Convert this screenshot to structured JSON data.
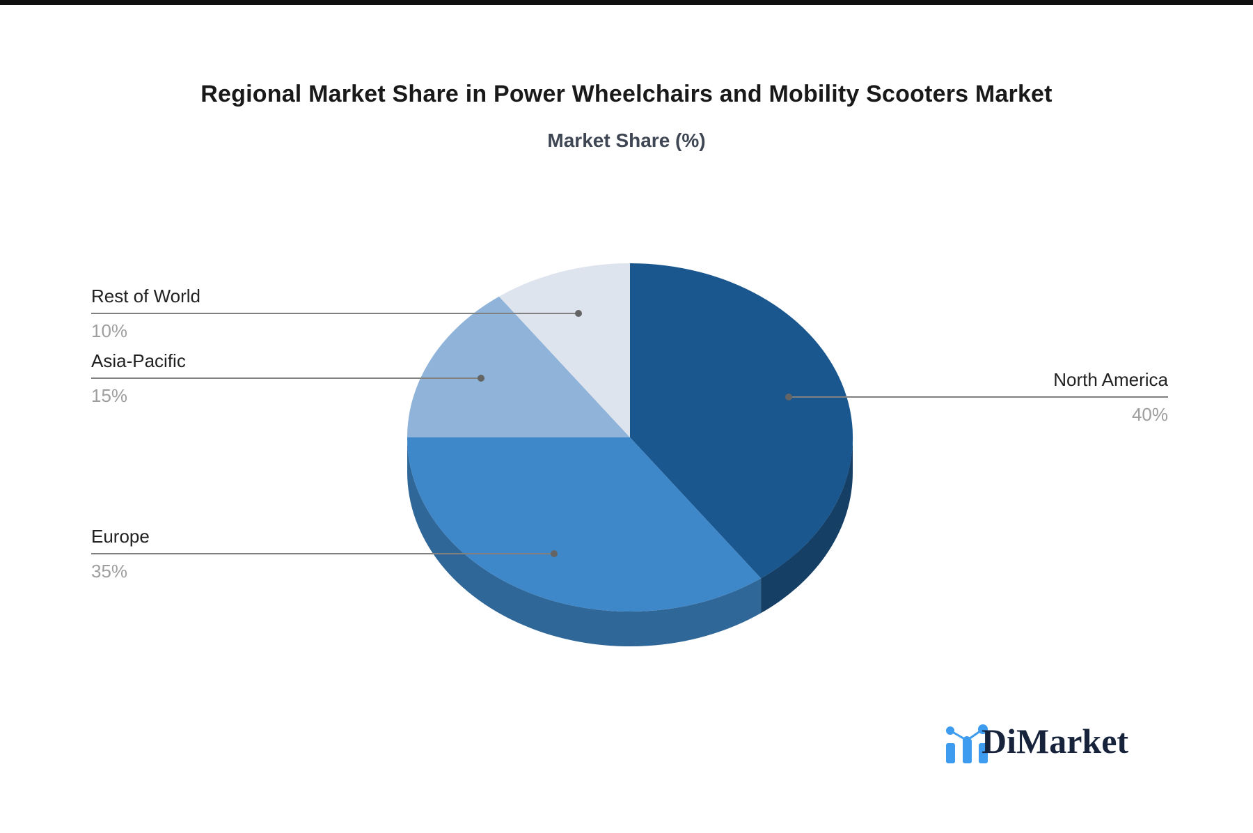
{
  "chart_data": {
    "type": "pie",
    "title": "Regional Market Share in Power Wheelchairs and Mobility Scooters Market",
    "subtitle": "Market Share (%)",
    "unit": "%",
    "start_angle_deg": 0,
    "direction": "clockwise",
    "effect": "3d",
    "legend_position": "callout-labels",
    "slices": [
      {
        "label": "North America",
        "value": 40,
        "pct_label": "40%",
        "color": "#1B578F",
        "side_color": "#163F66",
        "label_side": "right"
      },
      {
        "label": "Europe",
        "value": 35,
        "pct_label": "35%",
        "color": "#3E87C9",
        "side_color": "#2F6799",
        "label_side": "left"
      },
      {
        "label": "Asia-Pacific",
        "value": 15,
        "pct_label": "15%",
        "color": "#8FB3D9",
        "side_color": "#7EA6CC",
        "label_side": "left"
      },
      {
        "label": "Rest of World",
        "value": 10,
        "pct_label": "10%",
        "color": "#DEE4EE",
        "side_color": "#C2CDDD",
        "label_side": "left"
      }
    ],
    "colors": {
      "leader_line": "#808080",
      "leader_dot": "#646464",
      "label_text": "#212121",
      "pct_text": "#9E9E9E",
      "title_text": "#191919",
      "subtitle_text": "#3E4654"
    }
  },
  "branding": {
    "name": "DiMarket",
    "text_color": "#16233B",
    "icon_color": "#3D9BF0",
    "icon": "bar-line-chart-icon"
  }
}
